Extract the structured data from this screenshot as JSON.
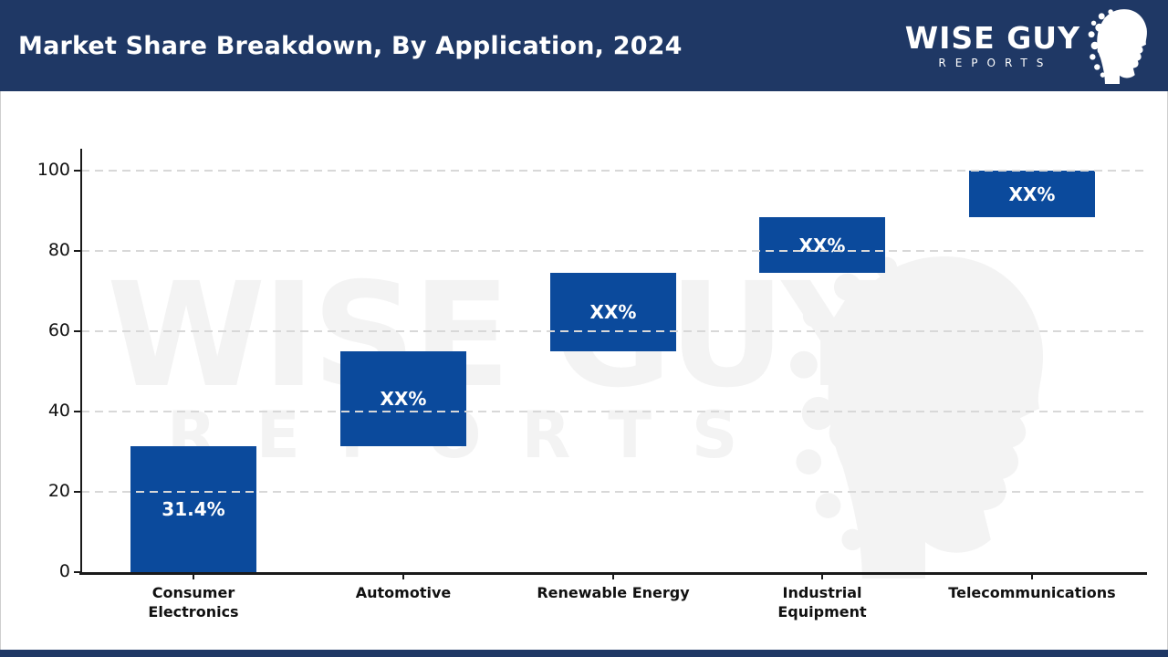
{
  "header": {
    "title": "Market Share Breakdown, By Application, 2024",
    "logo": {
      "line1": "WISE GUY",
      "line2": "REPORTS"
    }
  },
  "watermark": {
    "line1": "WISE GUY",
    "line2": "REPORTS"
  },
  "colors": {
    "header_bg": "#1f3865",
    "bar": "#0b4a9c",
    "bar_label_text": "#ffffff",
    "gridline": "#d8d8d8",
    "axis": "#1a1a1a",
    "watermark": "#f3f3f3"
  },
  "chart_data": {
    "type": "bar",
    "subtype": "waterfall",
    "title": "Market Share Breakdown, By Application, 2024",
    "categories": [
      "Consumer\nElectronics",
      "Automotive",
      "Renewable Energy",
      "Industrial\nEquipment",
      "Telecommunications"
    ],
    "segments": [
      {
        "category": "Consumer Electronics",
        "start": 0,
        "end": 31.4,
        "label": "31.4%"
      },
      {
        "category": "Automotive",
        "start": 31.4,
        "end": 55.0,
        "label": "XX%"
      },
      {
        "category": "Renewable Energy",
        "start": 55.0,
        "end": 74.5,
        "label": "XX%"
      },
      {
        "category": "Industrial Equipment",
        "start": 74.5,
        "end": 88.4,
        "label": "XX%"
      },
      {
        "category": "Telecommunications",
        "start": 88.4,
        "end": 100.0,
        "label": "XX%"
      }
    ],
    "yticks": [
      0,
      20,
      40,
      60,
      80,
      100
    ],
    "ylim": [
      0,
      105.5
    ],
    "xlabel": "",
    "ylabel": "",
    "grid": "horizontal-dashed",
    "legend": "none"
  }
}
